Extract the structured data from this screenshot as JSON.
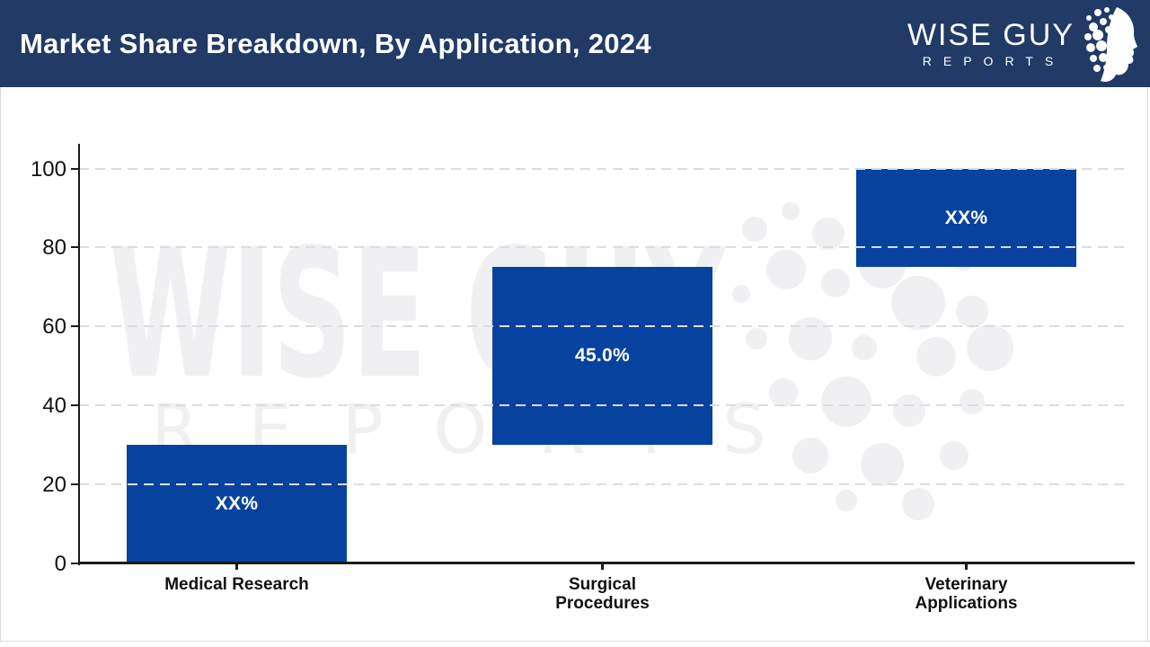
{
  "header": {
    "title": "Market Share Breakdown, By Application, 2024",
    "logo": {
      "line1": "WISE GUY",
      "line2": "REPORTS"
    }
  },
  "watermark": {
    "line1": "WISE GUY",
    "line2": "REPORTS"
  },
  "chart_data": {
    "type": "bar",
    "subtype": "floating-stacked-waterfall",
    "title": "Market Share Breakdown, By Application, 2024",
    "categories": [
      "Medical Research",
      "Surgical Procedures",
      "Veterinary Applications"
    ],
    "bars": [
      {
        "category": "Medical Research",
        "label_lines": [
          "Medical Research"
        ],
        "start": 0,
        "end": 30,
        "label": "XX%"
      },
      {
        "category": "Surgical Procedures",
        "label_lines": [
          "Surgical",
          "Procedures"
        ],
        "start": 30,
        "end": 75,
        "label": "45.0%"
      },
      {
        "category": "Veterinary Applications",
        "label_lines": [
          "Veterinary",
          "Applications"
        ],
        "start": 75,
        "end": 100,
        "label": "XX%"
      }
    ],
    "yticks": [
      0,
      20,
      40,
      60,
      80,
      100
    ],
    "ylim": [
      0,
      106
    ],
    "xlabel": "",
    "ylabel": "",
    "grid": "horizontal-dashed",
    "legend": "none"
  },
  "colors": {
    "header_bg": "#213a66",
    "bar_fill": "#07439e",
    "grid_line": "#d9dde3",
    "axis": "#1a1a1a",
    "watermark": "#f0f0f2",
    "title_text": "#ffffff",
    "hairline": "#dcdcdc"
  }
}
